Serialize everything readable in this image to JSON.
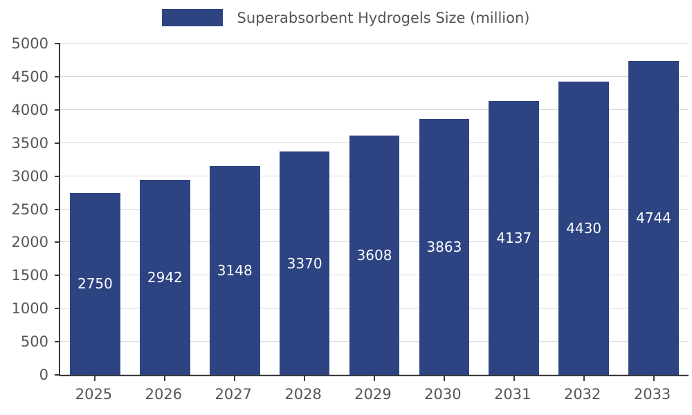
{
  "chart_data": {
    "type": "bar",
    "title": "Superabsorbent Hydrogels Size (million)",
    "categories": [
      "2025",
      "2026",
      "2027",
      "2028",
      "2029",
      "2030",
      "2031",
      "2032",
      "2033"
    ],
    "values": [
      2750,
      2942,
      3148,
      3370,
      3608,
      3863,
      4137,
      4430,
      4744
    ],
    "xlabel": "",
    "ylabel": "",
    "ylim": [
      0,
      5000
    ],
    "ytick_step": 500,
    "bar_color": "#2e4482",
    "grid": true,
    "legend_position": "top",
    "value_label_style": "inside-center-white"
  }
}
